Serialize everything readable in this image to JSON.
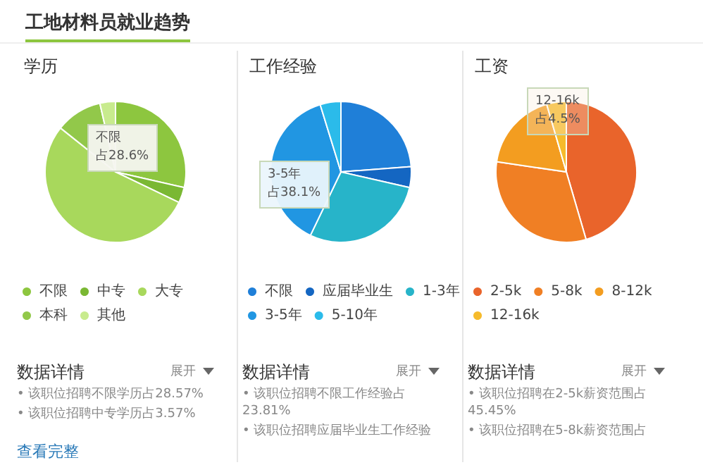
{
  "chart_data": [
    {
      "type": "other",
      "title": "工地材料员就业趋势"
    },
    {
      "type": "pie",
      "title": "学历",
      "categories": [
        "不限",
        "中专",
        "大专",
        "本科",
        "其他"
      ],
      "values": [
        28.57,
        3.57,
        53.57,
        10.71,
        3.57
      ],
      "colors": [
        "#8dc63f",
        "#7ab833",
        "#a8d85c",
        "#92c84a",
        "#c8eb8e"
      ],
      "legend": "bottom",
      "annotations": [
        "不限",
        "占28.6%",
        "数据详情",
        "展开",
        "• 该职位招聘不限学历占28.57%",
        "• 该职位招聘中专学历占3.57%",
        "查看完整"
      ]
    },
    {
      "type": "pie",
      "title": "工作经验",
      "categories": [
        "不限",
        "应届毕业生",
        "1-3年",
        "3-5年",
        "5-10年"
      ],
      "values": [
        23.81,
        4.76,
        28.57,
        38.1,
        4.76
      ],
      "colors": [
        "#1f7fd8",
        "#1466c2",
        "#27b4c9",
        "#2196e2",
        "#2bbbea"
      ],
      "legend": "bottom",
      "annotations": [
        "3-5年",
        "占38.1%",
        "数据详情",
        "展开",
        "• 该职位招聘不限工作经验占23.81%",
        "• 该职位招聘应届毕业生工作经验"
      ]
    },
    {
      "type": "pie",
      "title": "工资",
      "categories": [
        "2-5k",
        "5-8k",
        "8-12k",
        "12-16k"
      ],
      "values": [
        45.45,
        31.82,
        18.18,
        4.5
      ],
      "colors": [
        "#e9642b",
        "#f07f24",
        "#f39d20",
        "#f6bb2c"
      ],
      "legend": "bottom",
      "annotations": [
        "12-16k",
        "占4.5%",
        "数据详情",
        "展开",
        "• 该职位招聘在2-5k薪资范围占45.45%",
        "• 该职位招聘在5-8k薪资范围占"
      ]
    }
  ]
}
